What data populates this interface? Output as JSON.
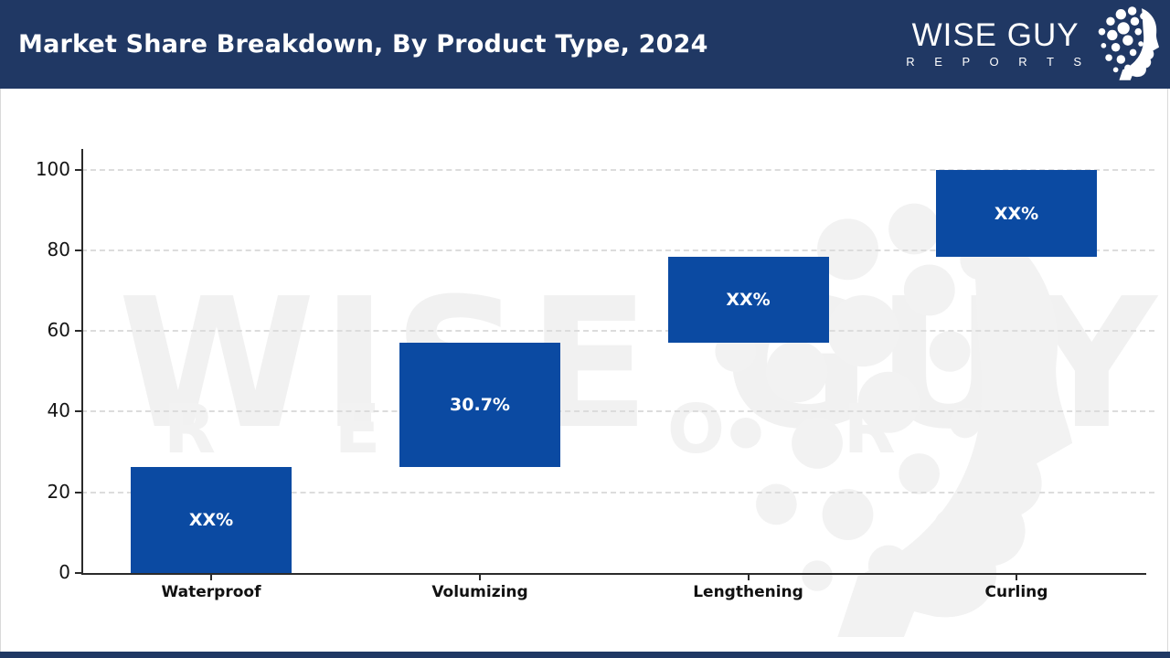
{
  "header": {
    "title": "Market Share Breakdown, By Product Type, 2024",
    "logo": {
      "line1": "WISE GUY",
      "line2": "R E P O R T S",
      "head_icon": "dotted-head-profile-icon"
    }
  },
  "watermark": {
    "line1": "WISE GUY",
    "line2": "R E P O R T S",
    "head_icon": "dotted-head-profile-watermark"
  },
  "colors": {
    "header_bg": "#203864",
    "footer_bg": "#203864",
    "bar": "#0b4aa2",
    "grid": "#dcdcdc",
    "axis": "#2b2b2b",
    "bar_label": "#ffffff",
    "watermark": "#f1f1f1"
  },
  "chart_data": {
    "type": "bar",
    "subtype": "waterfall",
    "title": "Market Share Breakdown, By Product Type, 2024",
    "categories": [
      "Waterproof",
      "Volumizing",
      "Lengthening",
      "Curling"
    ],
    "bars": [
      {
        "category": "Waterproof",
        "from": 0,
        "to": 26.3,
        "value": 26.3,
        "label": "XX%"
      },
      {
        "category": "Volumizing",
        "from": 26.3,
        "to": 57,
        "value": 30.7,
        "label": "30.7%"
      },
      {
        "category": "Lengthening",
        "from": 57,
        "to": 78.3,
        "value": 21.3,
        "label": "XX%"
      },
      {
        "category": "Curling",
        "from": 78.3,
        "to": 100,
        "value": 21.7,
        "label": "XX%"
      }
    ],
    "xlabel": "",
    "ylabel": "",
    "yticks": [
      0,
      20,
      40,
      60,
      80,
      100
    ],
    "ylim": [
      0,
      105
    ],
    "grid": {
      "horizontal": true,
      "style": "dashed"
    },
    "legend": null,
    "bar_color": "#0b4aa2",
    "bar_label_color": "#ffffff"
  }
}
